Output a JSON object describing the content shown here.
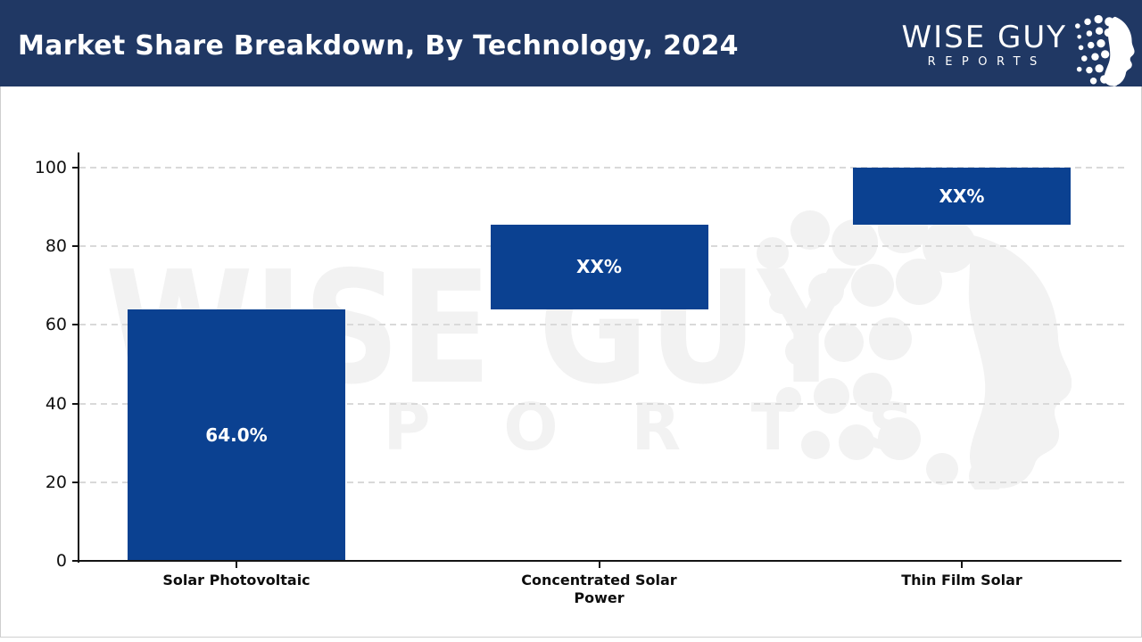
{
  "header": {
    "title": "Market Share Breakdown, By Technology, 2024",
    "logo": {
      "name": "WISE GUY",
      "tagline": "REPORTS"
    }
  },
  "watermark": {
    "line1": "WISE GUY",
    "line2": "REPORTS"
  },
  "colors": {
    "header_bg": "#203864",
    "bar": "#0b4191",
    "bar_label": "#ffffff",
    "grid": "#d9d9d9",
    "axis": "#141414",
    "watermark": "#f2f2f2",
    "card_border": "#cfcfcf"
  },
  "chart_data": {
    "type": "bar",
    "subtype": "stacked-waterfall segments, one floating segment per category, total 100%",
    "title": "Market Share Breakdown, By Technology, 2024",
    "categories": [
      "Solar Photovoltaic",
      "Concentrated Solar Power",
      "Thin Film Solar"
    ],
    "segments": [
      {
        "category": "Solar Photovoltaic",
        "start": 0,
        "end": 64,
        "label": "64.0%"
      },
      {
        "category": "Concentrated Solar Power",
        "start": 64,
        "end": 85.5,
        "label": "XX%"
      },
      {
        "category": "Thin Film Solar",
        "start": 85.5,
        "end": 100,
        "label": "XX%"
      }
    ],
    "units": "percent",
    "ylim": [
      0,
      100
    ],
    "yticks": [
      0,
      20,
      40,
      60,
      80,
      100
    ],
    "grid": "horizontal-dashed",
    "legend": "none"
  }
}
